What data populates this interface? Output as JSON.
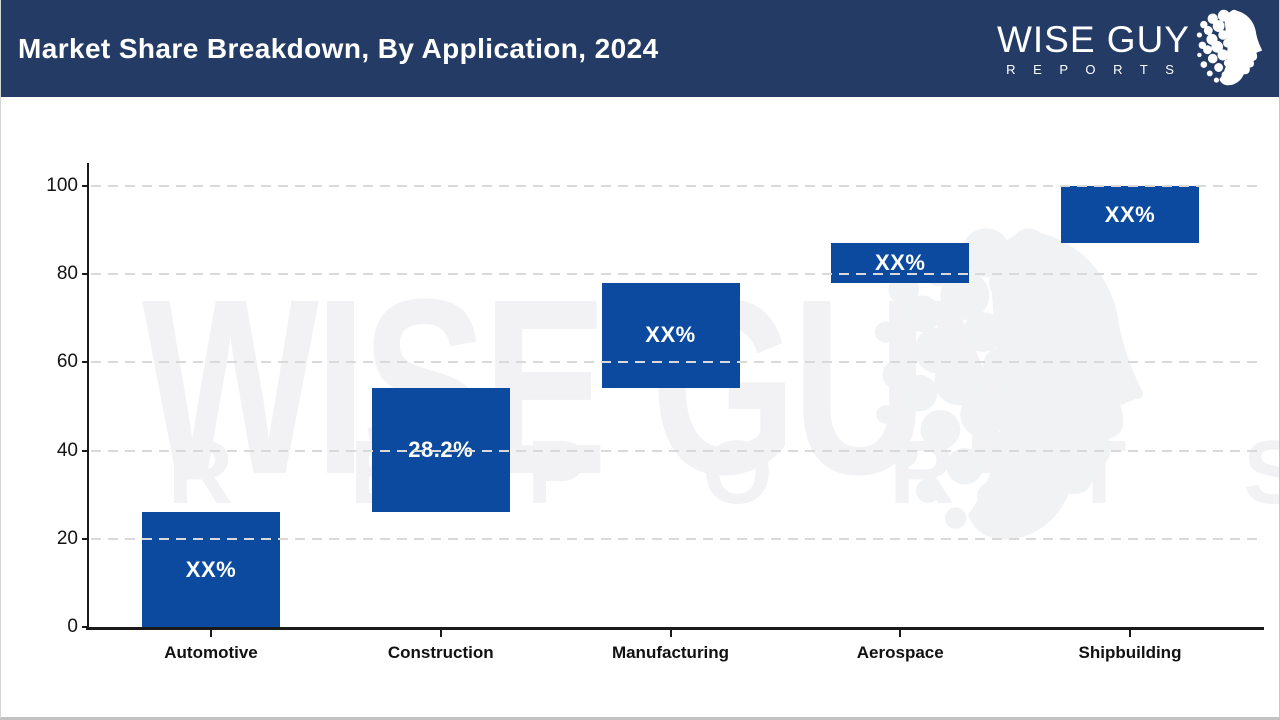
{
  "header": {
    "title": "Market Share Breakdown, By Application, 2024",
    "bg_color": "#243b66",
    "logo": {
      "line1": "WISE GUY",
      "line2": "R E P O R T S"
    }
  },
  "watermark": {
    "line1": "WISE GUY",
    "line2": "R E P O R T S"
  },
  "chart_data": {
    "type": "bar",
    "subtype": "floating-segment-waterfall",
    "title": "Market Share Breakdown, By Application, 2024",
    "categories": [
      "Automotive",
      "Construction",
      "Manufacturing",
      "Aerospace",
      "Shipbuilding"
    ],
    "segments": [
      {
        "category": "Automotive",
        "start": 0,
        "end": 26,
        "label": "XX%"
      },
      {
        "category": "Construction",
        "start": 26,
        "end": 54.2,
        "label": "28.2%",
        "value": 28.2
      },
      {
        "category": "Manufacturing",
        "start": 54.2,
        "end": 78,
        "label": "XX%"
      },
      {
        "category": "Aerospace",
        "start": 78,
        "end": 87,
        "label": "XX%"
      },
      {
        "category": "Shipbuilding",
        "start": 87,
        "end": 100,
        "label": "XX%"
      }
    ],
    "xlabel": "",
    "ylabel": "",
    "ylim": [
      0,
      100
    ],
    "yticks": [
      0,
      20,
      40,
      60,
      80,
      100
    ],
    "grid": "horizontal-dashed",
    "legend": "none",
    "bar_color": "#0b4a9e",
    "bar_label_color": "#ffffff",
    "axis_color": "#1a1a1a",
    "gridline_color": "#d9d9d9"
  }
}
